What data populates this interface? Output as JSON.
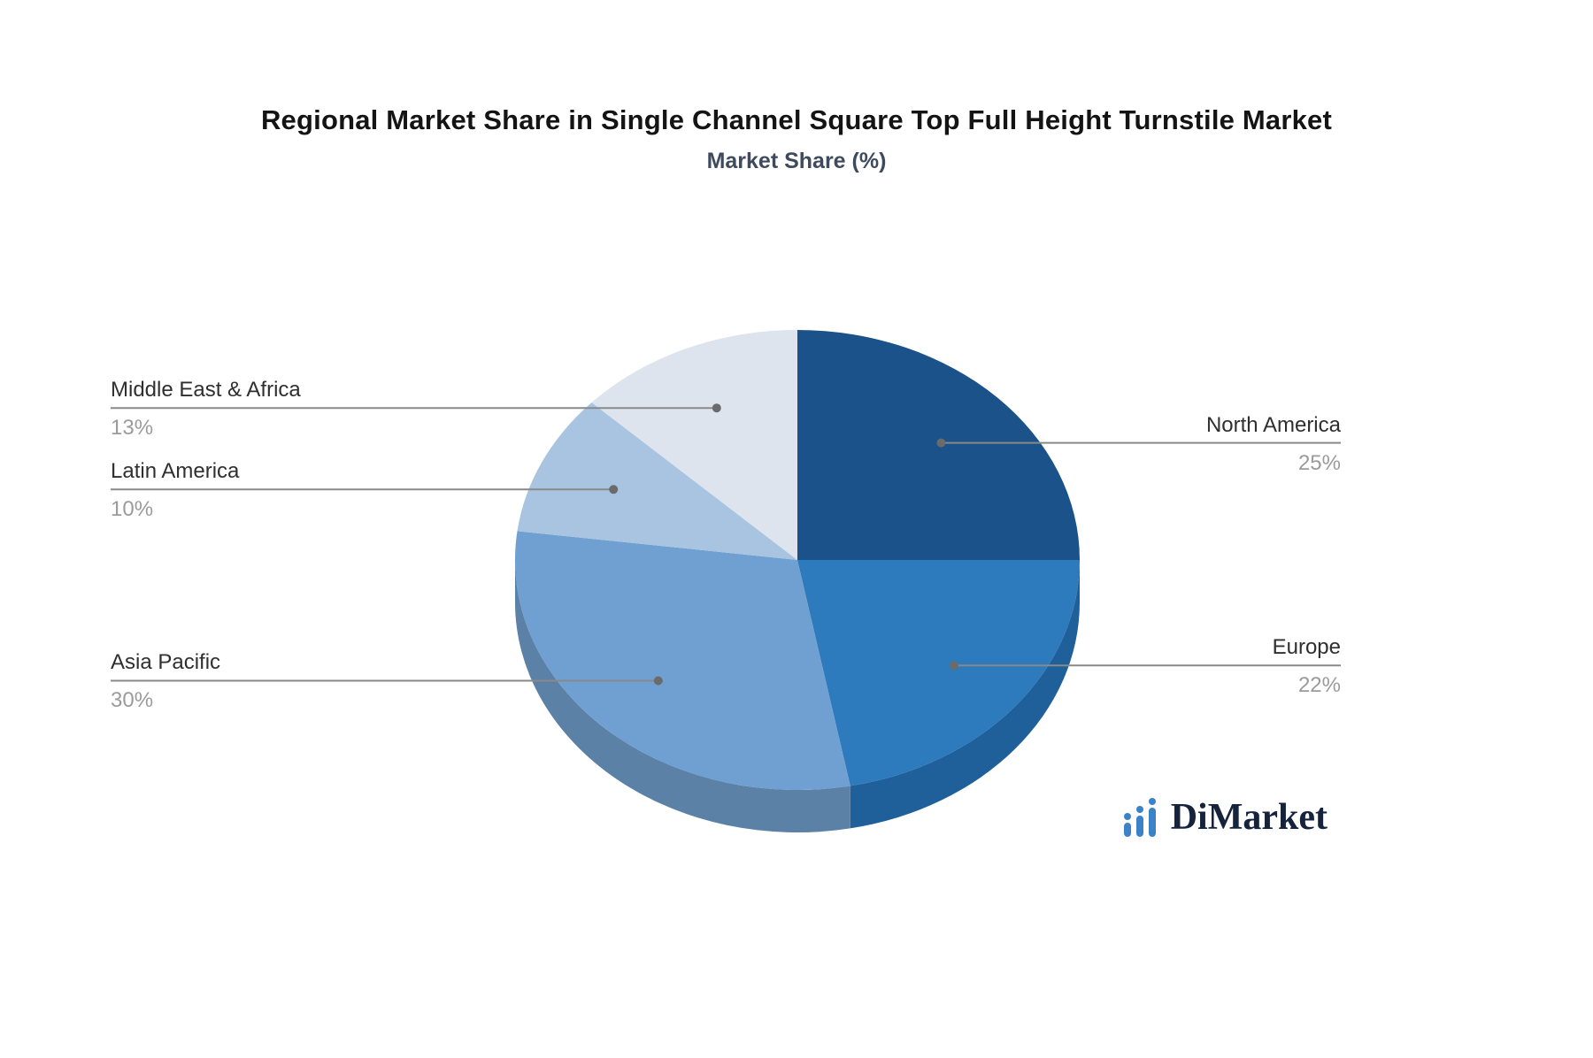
{
  "header": {
    "title": "Regional Market Share in Single Channel Square Top Full Height Turnstile Market",
    "subtitle": "Market Share (%)",
    "title_color": "#141414",
    "subtitle_color": "#3e4a5e"
  },
  "chart_data": {
    "type": "pie",
    "title": "Regional Market Share in Single Channel Square Top Full Height Turnstile Market",
    "subtitle": "Market Share (%)",
    "unit": "%",
    "start_angle_deg": 0,
    "direction": "clockwise",
    "effect_3d": true,
    "legend_position": "outside-callouts",
    "categories": [
      "North America",
      "Europe",
      "Asia Pacific",
      "Latin America",
      "Middle East & Africa"
    ],
    "values": [
      25,
      22,
      30,
      10,
      13
    ],
    "slices": [
      {
        "label": "North America",
        "value": 25,
        "display": "25%",
        "color": "#1b5289",
        "side_color": "#16436f",
        "label_side": "right"
      },
      {
        "label": "Europe",
        "value": 22,
        "display": "22%",
        "color": "#2d7abd",
        "side_color": "#20609a",
        "label_side": "right"
      },
      {
        "label": "Asia Pacific",
        "value": 30,
        "display": "30%",
        "color": "#6fa0d1",
        "side_color": "#5b81a7",
        "label_side": "left"
      },
      {
        "label": "Latin America",
        "value": 10,
        "display": "10%",
        "color": "#a8c4e0",
        "side_color": "#8aa1b8",
        "label_side": "left"
      },
      {
        "label": "Middle East & Africa",
        "value": 13,
        "display": "13%",
        "color": "#dde4ee",
        "side_color": "#b6bdc7",
        "label_side": "left"
      }
    ],
    "leader_line_color": "#898989",
    "leader_dot_color": "#6b6b6b",
    "label_name_color": "#2f2f2f",
    "label_value_color": "#9b9b9b"
  },
  "logo": {
    "text": "DiMarket",
    "icon": "bar-chart-icon",
    "text_color": "#15233d",
    "icon_color": "#3b82c8"
  }
}
